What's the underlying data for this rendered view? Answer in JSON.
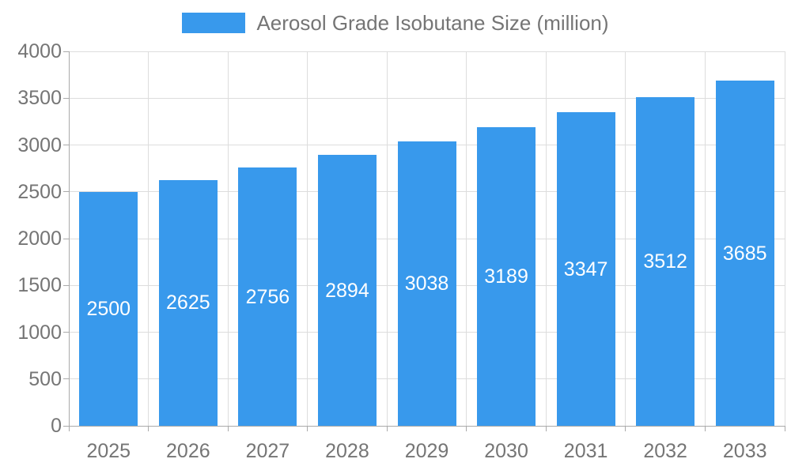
{
  "chart_data": {
    "type": "bar",
    "title": "Aerosol Grade Isobutane Size (million)",
    "categories": [
      "2025",
      "2026",
      "2027",
      "2028",
      "2029",
      "2030",
      "2031",
      "2032",
      "2033"
    ],
    "series": [
      {
        "name": "Aerosol Grade Isobutane Size (million)",
        "values": [
          2500,
          2625,
          2756,
          2894,
          3038,
          3189,
          3347,
          3512,
          3685
        ]
      }
    ],
    "xlabel": "",
    "ylabel": "",
    "ylim": [
      0,
      4000
    ],
    "yticks": [
      0,
      500,
      1000,
      1500,
      2000,
      2500,
      3000,
      3500,
      4000
    ],
    "grid": true,
    "legend_position": "top-center",
    "value_labels": "inside-center",
    "colors": {
      "bar": "#3899ec",
      "value_label": "#ffffff",
      "axis_text": "#757575",
      "legend_text": "#757575",
      "gridline": "#dddddd",
      "axis_line": "#aaaaaa",
      "background": "#ffffff"
    }
  }
}
